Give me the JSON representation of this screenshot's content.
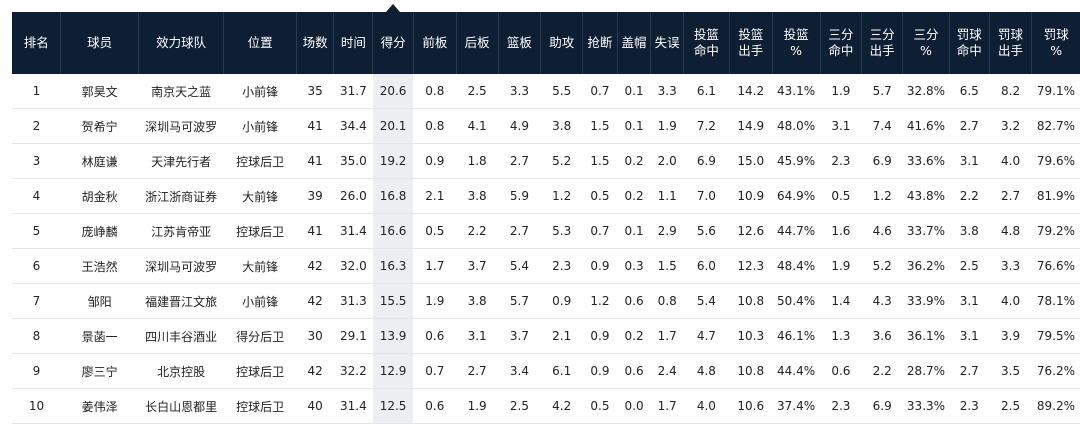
{
  "table": {
    "sort_indicator_icon": "sort-caret-icon",
    "headers": [
      [
        "排名"
      ],
      [
        "球员"
      ],
      [
        "效力球队"
      ],
      [
        "位置"
      ],
      [
        "场数"
      ],
      [
        "时间"
      ],
      [
        "得分"
      ],
      [
        "前板"
      ],
      [
        "后板"
      ],
      [
        "篮板"
      ],
      [
        "助攻"
      ],
      [
        "抢断"
      ],
      [
        "盖帽"
      ],
      [
        "失误"
      ],
      [
        "投篮",
        "命中"
      ],
      [
        "投篮",
        "出手"
      ],
      [
        "投篮",
        "%"
      ],
      [
        "三分",
        "命中"
      ],
      [
        "三分",
        "出手"
      ],
      [
        "三分",
        "%"
      ],
      [
        "罚球",
        "命中"
      ],
      [
        "罚球",
        "出手"
      ],
      [
        "罚球",
        "%"
      ]
    ],
    "sorted_column": 6,
    "rows": [
      [
        "1",
        "郭昊文",
        "南京天之蓝",
        "小前锋",
        "35",
        "31.7",
        "20.6",
        "0.8",
        "2.5",
        "3.3",
        "5.5",
        "0.7",
        "0.1",
        "3.3",
        "6.1",
        "14.2",
        "43.1%",
        "1.9",
        "5.7",
        "32.8%",
        "6.5",
        "8.2",
        "79.1%"
      ],
      [
        "2",
        "贺希宁",
        "深圳马可波罗",
        "小前锋",
        "41",
        "34.4",
        "20.1",
        "0.8",
        "4.1",
        "4.9",
        "3.8",
        "1.5",
        "0.1",
        "1.9",
        "7.2",
        "14.9",
        "48.0%",
        "3.1",
        "7.4",
        "41.6%",
        "2.7",
        "3.2",
        "82.7%"
      ],
      [
        "3",
        "林庭谦",
        "天津先行者",
        "控球后卫",
        "41",
        "35.0",
        "19.2",
        "0.9",
        "1.8",
        "2.7",
        "5.2",
        "1.5",
        "0.2",
        "2.0",
        "6.9",
        "15.0",
        "45.9%",
        "2.3",
        "6.9",
        "33.6%",
        "3.1",
        "4.0",
        "79.6%"
      ],
      [
        "4",
        "胡金秋",
        "浙江浙商证券",
        "大前锋",
        "39",
        "26.0",
        "16.8",
        "2.1",
        "3.8",
        "5.9",
        "1.2",
        "0.5",
        "0.2",
        "1.1",
        "7.0",
        "10.9",
        "64.9%",
        "0.5",
        "1.2",
        "43.8%",
        "2.2",
        "2.7",
        "81.9%"
      ],
      [
        "5",
        "庞峥麟",
        "江苏肯帝亚",
        "控球后卫",
        "41",
        "31.4",
        "16.6",
        "0.5",
        "2.2",
        "2.7",
        "5.3",
        "0.7",
        "0.1",
        "2.9",
        "5.6",
        "12.6",
        "44.7%",
        "1.6",
        "4.6",
        "33.7%",
        "3.8",
        "4.8",
        "79.2%"
      ],
      [
        "6",
        "王浩然",
        "深圳马可波罗",
        "大前锋",
        "42",
        "32.0",
        "16.3",
        "1.7",
        "3.7",
        "5.4",
        "2.3",
        "0.9",
        "0.3",
        "1.5",
        "6.0",
        "12.3",
        "48.4%",
        "1.9",
        "5.2",
        "36.2%",
        "2.5",
        "3.3",
        "76.6%"
      ],
      [
        "7",
        "邹阳",
        "福建晋江文旅",
        "小前锋",
        "42",
        "31.3",
        "15.5",
        "1.9",
        "3.8",
        "5.7",
        "0.9",
        "1.2",
        "0.6",
        "0.8",
        "5.4",
        "10.8",
        "50.4%",
        "1.4",
        "4.3",
        "33.9%",
        "3.1",
        "4.0",
        "78.1%"
      ],
      [
        "8",
        "景菡一",
        "四川丰谷酒业",
        "得分后卫",
        "30",
        "29.1",
        "13.9",
        "0.6",
        "3.1",
        "3.7",
        "2.1",
        "0.9",
        "0.2",
        "1.7",
        "4.7",
        "10.3",
        "46.1%",
        "1.3",
        "3.6",
        "36.1%",
        "3.1",
        "3.9",
        "79.5%"
      ],
      [
        "9",
        "廖三宁",
        "北京控股",
        "控球后卫",
        "42",
        "32.2",
        "12.9",
        "0.7",
        "2.7",
        "3.4",
        "6.1",
        "0.9",
        "0.6",
        "2.4",
        "4.8",
        "10.8",
        "44.4%",
        "0.6",
        "2.2",
        "28.7%",
        "2.7",
        "3.5",
        "76.2%"
      ],
      [
        "10",
        "姜伟泽",
        "长白山恩都里",
        "控球后卫",
        "40",
        "31.4",
        "12.5",
        "0.6",
        "1.9",
        "2.5",
        "4.2",
        "0.5",
        "0.0",
        "1.7",
        "4.0",
        "10.6",
        "37.4%",
        "2.3",
        "6.9",
        "33.3%",
        "2.3",
        "2.5",
        "89.2%"
      ]
    ]
  }
}
